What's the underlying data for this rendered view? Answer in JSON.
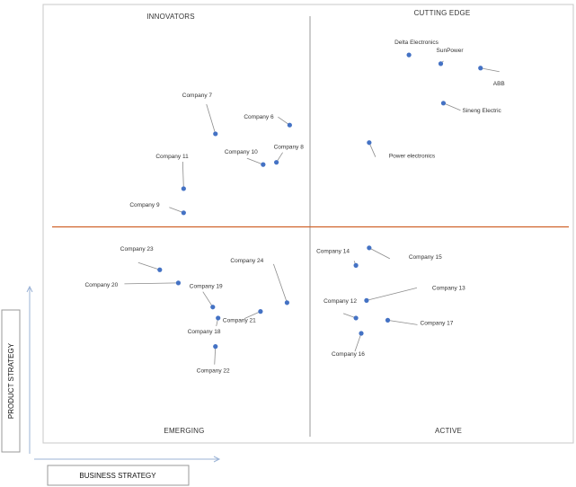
{
  "chart_data": {
    "type": "scatter",
    "title": "",
    "quadrants": {
      "top_left": "INNOVATORS",
      "top_right": "CUTTING EDGE",
      "bottom_left": "EMERGING",
      "bottom_right": "ACTIVE"
    },
    "xlabel": "BUSINESS STRATEGY",
    "ylabel": "PRODUCT STRATEGY",
    "xlim": [
      0,
      100
    ],
    "ylim": [
      0,
      100
    ],
    "grid": false,
    "divider_color": "#d0622a",
    "point_color": "#4472c4",
    "points": [
      {
        "name": "Delta Electronics",
        "x": 69,
        "y": 88.5
      },
      {
        "name": "SunPower",
        "x": 75,
        "y": 86.5
      },
      {
        "name": "ABB",
        "x": 82.5,
        "y": 85.5
      },
      {
        "name": "Sineng Electric",
        "x": 75.5,
        "y": 77.5
      },
      {
        "name": "Power electronics",
        "x": 61.5,
        "y": 68.5
      },
      {
        "name": "Company 7",
        "x": 32.5,
        "y": 70.5
      },
      {
        "name": "Company 6",
        "x": 46.5,
        "y": 72.5
      },
      {
        "name": "Company 8",
        "x": 44,
        "y": 64
      },
      {
        "name": "Company 10",
        "x": 41.5,
        "y": 63.5
      },
      {
        "name": "Company 11",
        "x": 26.5,
        "y": 58
      },
      {
        "name": "Company 9",
        "x": 26.5,
        "y": 52.5
      },
      {
        "name": "Company 14",
        "x": 59,
        "y": 40.5
      },
      {
        "name": "Company 15",
        "x": 61.5,
        "y": 44.5
      },
      {
        "name": "Company 13",
        "x": 61,
        "y": 32.5
      },
      {
        "name": "Company 12",
        "x": 59,
        "y": 28.5
      },
      {
        "name": "Company 17",
        "x": 65,
        "y": 28
      },
      {
        "name": "Company 16",
        "x": 60,
        "y": 25
      },
      {
        "name": "Company 23",
        "x": 22,
        "y": 39.5
      },
      {
        "name": "Company 20",
        "x": 25.5,
        "y": 36.5
      },
      {
        "name": "Company 19",
        "x": 32,
        "y": 31
      },
      {
        "name": "Company 24",
        "x": 46,
        "y": 32
      },
      {
        "name": "Company 21",
        "x": 41,
        "y": 30
      },
      {
        "name": "Company 18",
        "x": 33,
        "y": 28.5
      },
      {
        "name": "Company 22",
        "x": 32.5,
        "y": 22
      }
    ]
  }
}
